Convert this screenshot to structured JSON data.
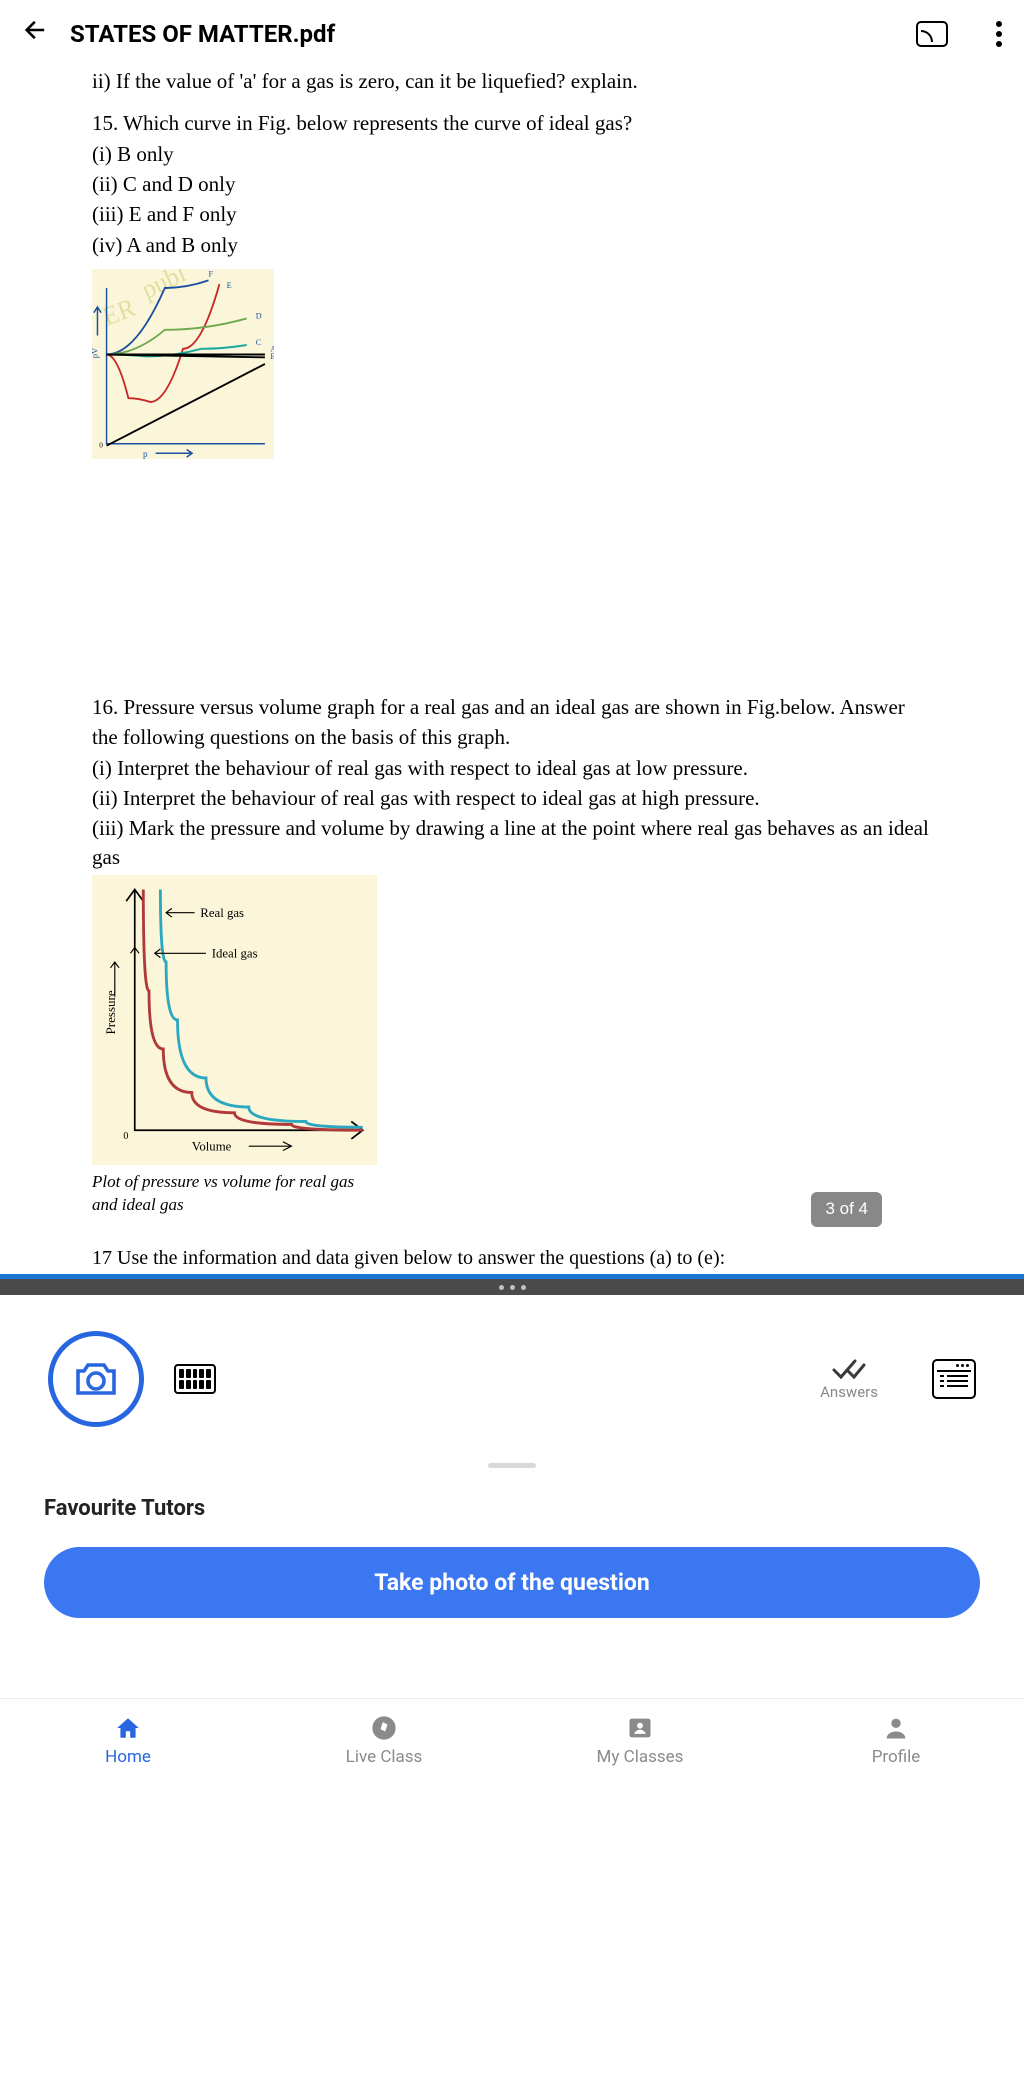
{
  "header": {
    "title": "STATES OF MATTER.pdf"
  },
  "document": {
    "q_ii": "ii) If the value of 'a' for a gas is zero, can it be liquefied? explain.",
    "q15": {
      "prompt": "15. Which curve in Fig. below represents the curve of ideal gas?",
      "options": [
        "(i) B only",
        "(ii) C and D only",
        "(iii) E and F only",
        "(iv) A and B only"
      ]
    },
    "chart1": {
      "type": "line",
      "background_color": "#fbf6d9",
      "xlabel": "p",
      "ylabel": "pV",
      "axis_color": "#194fa0",
      "arrow_color": "#194fa0",
      "xlim": [
        0,
        100
      ],
      "ylim": [
        0,
        100
      ],
      "watermark_texts": [
        "ER",
        "publ"
      ],
      "watermark_color": "#e0e0a0",
      "series": [
        {
          "label": "F",
          "color": "#194fa0",
          "points": [
            [
              8,
              55
            ],
            [
              40,
              90
            ],
            [
              64,
              94
            ]
          ],
          "label_pos": [
            64,
            96
          ]
        },
        {
          "label": "E",
          "color": "#c62828",
          "points": [
            [
              8,
              55
            ],
            [
              20,
              32
            ],
            [
              32,
              30
            ],
            [
              50,
              58
            ],
            [
              70,
              92
            ]
          ],
          "label_pos": [
            74,
            90
          ]
        },
        {
          "label": "D",
          "color": "#6fa84f",
          "points": [
            [
              8,
              55
            ],
            [
              40,
              68
            ],
            [
              85,
              74
            ]
          ],
          "label_pos": [
            90,
            74
          ]
        },
        {
          "label": "C",
          "color": "#1aa89e",
          "points": [
            [
              8,
              55
            ],
            [
              30,
              54
            ],
            [
              60,
              58
            ],
            [
              85,
              60
            ]
          ],
          "label_pos": [
            90,
            60
          ]
        },
        {
          "label": "A",
          "color": "#000000",
          "points": [
            [
              8,
              55
            ],
            [
              95,
              55
            ]
          ],
          "label_pos": [
            98,
            56.5
          ]
        },
        {
          "label": "B",
          "color": "#000000",
          "points": [
            [
              8,
              55
            ],
            [
              95,
              53.5
            ]
          ],
          "label_pos": [
            98,
            52.5
          ]
        },
        {
          "label": "",
          "color": "#000000",
          "points": [
            [
              8,
              7
            ],
            [
              95,
              50
            ]
          ],
          "label_pos": [
            0,
            0
          ]
        }
      ]
    },
    "q16": {
      "lines": [
        "16. Pressure versus volume graph for a real gas and an ideal gas are shown in Fig.below. Answer",
        "the following questions on the  basis of this graph.",
        "(i) Interpret the behaviour of real gas with respect to  ideal gas at low pressure.",
        "(ii) Interpret the behaviour of real gas with respect to ideal gas at high pressure.",
        "(iii) Mark the pressure and volume by drawing a line at the point where real gas behaves as an ideal gas"
      ]
    },
    "chart2": {
      "type": "line",
      "background_color": "#fbf6d9",
      "xlabel": "Volume",
      "ylabel": "Pressure",
      "axis_color": "#000000",
      "label_fontsize": 13,
      "series": [
        {
          "label": "Real gas",
          "color": "#2ba8bf",
          "points": [
            [
              24,
              95
            ],
            [
              26,
              70
            ],
            [
              30,
              50
            ],
            [
              40,
              30
            ],
            [
              55,
              20
            ],
            [
              75,
              15
            ],
            [
              95,
              13
            ]
          ],
          "width": 2.5
        },
        {
          "label": "Ideal gas",
          "color": "#b03a3a",
          "points": [
            [
              18,
              95
            ],
            [
              20,
              60
            ],
            [
              25,
              40
            ],
            [
              35,
              25
            ],
            [
              50,
              18
            ],
            [
              70,
              14
            ],
            [
              95,
              12
            ]
          ],
          "width": 2.5
        }
      ],
      "label_arrows": [
        {
          "text": "Real gas",
          "from": [
            36,
            87
          ],
          "to": [
            26,
            87
          ]
        },
        {
          "text": "Ideal gas",
          "from": [
            40,
            73
          ],
          "to": [
            22,
            73
          ]
        }
      ],
      "caption": "Plot of pressure vs volume for real gas and ideal gas"
    },
    "page_indicator": "3 of 4",
    "cutoff_line": "17  Use the information and data given below to answer the questions (a) to (e):"
  },
  "actions": {
    "answers_label": "Answers"
  },
  "favourite": {
    "title": "Favourite Tutors",
    "button": "Take photo of the question"
  },
  "navbar": {
    "items": [
      {
        "label": "Home",
        "active": true
      },
      {
        "label": "Live Class",
        "active": false
      },
      {
        "label": "My Classes",
        "active": false
      },
      {
        "label": "Profile",
        "active": false
      }
    ]
  }
}
